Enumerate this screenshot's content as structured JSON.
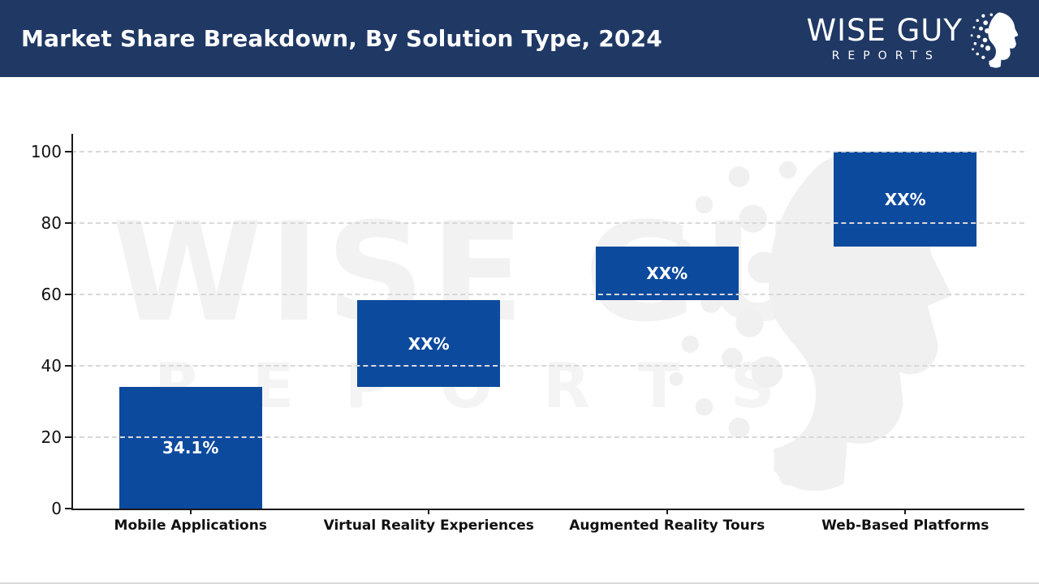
{
  "header": {
    "title": "Market Share Breakdown, By Solution Type, 2024",
    "logo": {
      "line1": "WISE GUY",
      "line2": "REPORTS"
    }
  },
  "watermark": {
    "line1": "WISE GUY",
    "line2": "REPORTS"
  },
  "colors": {
    "header_bg": "#1f3864",
    "bar": "#0c4a9e",
    "bar_label": "#ffffff",
    "gridline": "#d8d8d8",
    "axis": "#1a1a1a"
  },
  "chart_data": {
    "type": "bar",
    "subtype": "floating-waterfall",
    "title": "Market Share Breakdown, By Solution Type, 2024",
    "xlabel": "",
    "ylabel": "",
    "categories": [
      "Mobile Applications",
      "Virtual Reality Experiences",
      "Augmented Reality Tours",
      "Web-Based Platforms"
    ],
    "bars": [
      {
        "category": "Mobile Applications",
        "start": 0,
        "end": 34.1,
        "label": "34.1%"
      },
      {
        "category": "Virtual Reality Experiences",
        "start": 34.1,
        "end": 58.4,
        "label": "XX%"
      },
      {
        "category": "Augmented Reality Tours",
        "start": 58.5,
        "end": 73.5,
        "label": "XX%"
      },
      {
        "category": "Web-Based Platforms",
        "start": 73.4,
        "end": 100,
        "label": "XX%"
      }
    ],
    "y_ticks": [
      0,
      20,
      40,
      60,
      80,
      100
    ],
    "ylim": [
      0,
      100
    ],
    "grid": true,
    "legend": false
  }
}
